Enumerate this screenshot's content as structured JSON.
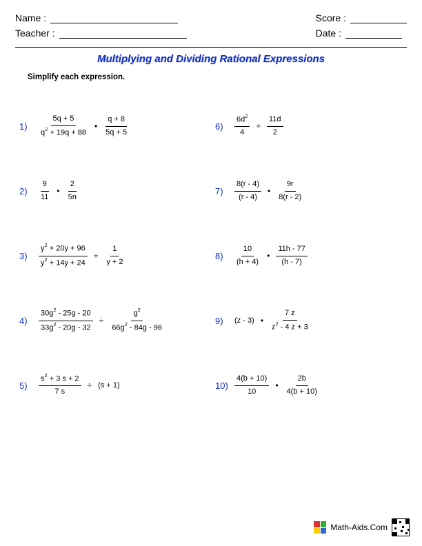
{
  "header": {
    "name_label": "Name :",
    "teacher_label": "Teacher :",
    "score_label": "Score :",
    "date_label": "Date :"
  },
  "title": "Multiplying and Dividing Rational Expressions",
  "instructions": "Simplify each expression.",
  "footer": {
    "site": "Math-Aids.Com"
  },
  "problems": {
    "p1": {
      "num": "1)",
      "a_num": "5q + 5",
      "a_den": "q² + 19q + 88",
      "op": "•",
      "b_num": "q + 8",
      "b_den": "5q + 5"
    },
    "p2": {
      "num": "2)",
      "a_num": "9",
      "a_den": "11",
      "op": "•",
      "b_num": "2",
      "b_den": "5n"
    },
    "p3": {
      "num": "3)",
      "a_num": "y² + 20y + 96",
      "a_den": "y² + 14y + 24",
      "op": "÷",
      "b_num": "1",
      "b_den": "y + 2"
    },
    "p4": {
      "num": "4)",
      "a_num": "30g² - 25g - 20",
      "a_den": "33g² - 20g - 32",
      "op": "÷",
      "b_num": "g²",
      "b_den": "66g² - 84g - 96"
    },
    "p5": {
      "num": "5)",
      "a_num": "s² + 3 s + 2",
      "a_den": "7 s",
      "op": "÷",
      "b": "(s + 1)"
    },
    "p6": {
      "num": "6)",
      "a_num": "6d²",
      "a_den": "4",
      "op": "÷",
      "b_num": "11d",
      "b_den": "2"
    },
    "p7": {
      "num": "7)",
      "a_num": "8(r - 4)",
      "a_den": "(r - 4)",
      "op": "•",
      "b_num": "9r",
      "b_den": "8(r - 2)"
    },
    "p8": {
      "num": "8)",
      "a_num": "10",
      "a_den": "(h + 4)",
      "op": "•",
      "b_num": "11h - 77",
      "b_den": "(h - 7)"
    },
    "p9": {
      "num": "9)",
      "a": "(z - 3)",
      "op": "•",
      "b_num": "7 z",
      "b_den": "z² - 4 z + 3"
    },
    "p10": {
      "num": "10)",
      "a_num": "4(b + 10)",
      "a_den": "10",
      "op": "•",
      "b_num": "2b",
      "b_den": "4(b + 10)"
    }
  }
}
